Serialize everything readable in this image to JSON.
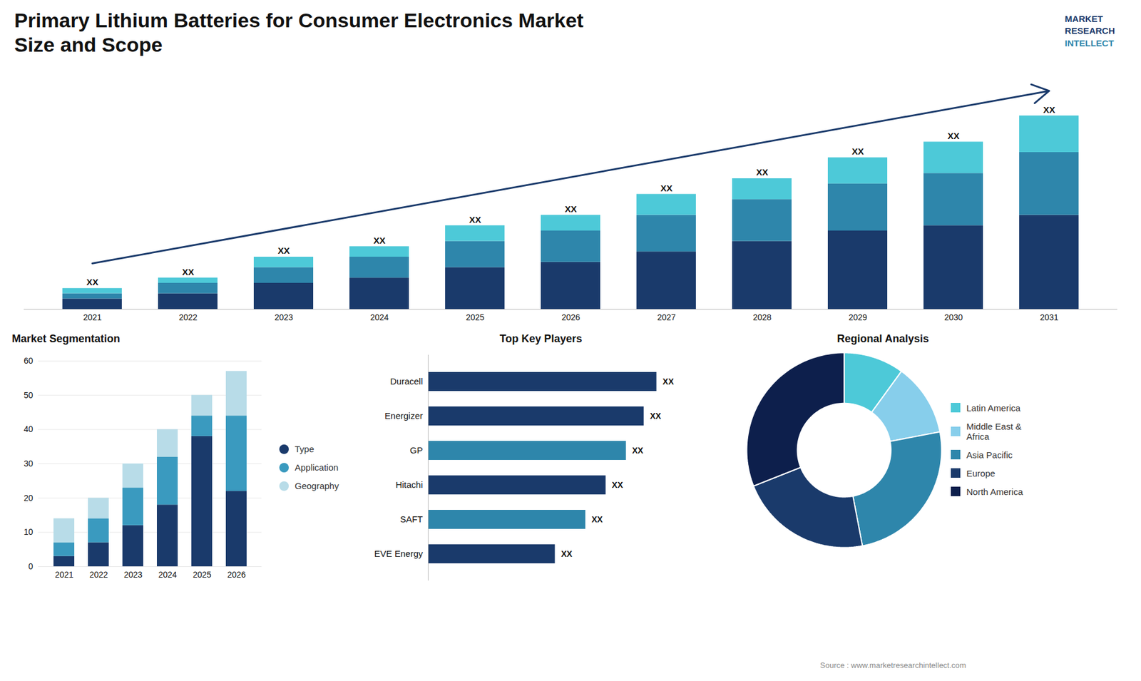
{
  "chart_data": [
    {
      "type": "bar",
      "title": "Primary Lithium Batteries for Consumer Electronics Market",
      "subtitle": "Size and Scope",
      "stacked": true,
      "categories": [
        "2021",
        "2022",
        "2023",
        "2024",
        "2025",
        "2026",
        "2027",
        "2028",
        "2029",
        "2030",
        "2031"
      ],
      "series": [
        {
          "color": "#1a3a6b",
          "values": [
            2,
            3,
            5,
            6,
            8,
            9,
            11,
            13,
            15,
            16,
            18
          ]
        },
        {
          "color": "#2e86ab",
          "values": [
            1,
            2,
            3,
            4,
            5,
            6,
            7,
            8,
            9,
            10,
            12
          ]
        },
        {
          "color": "#4dc9d8",
          "values": [
            1,
            1,
            2,
            2,
            3,
            3,
            4,
            4,
            5,
            6,
            7
          ]
        }
      ],
      "ylim": [
        0,
        45
      ],
      "tick_labels": "x",
      "data_labels": true,
      "value_labels": [
        "XX",
        "XX",
        "XX",
        "XX",
        "XX",
        "XX",
        "XX",
        "XX",
        "XX",
        "XX",
        "XX"
      ],
      "annotations": [
        "MARKET",
        "RESEARCH",
        "INTELLECT",
        "Source : www.marketresearchintellect.com"
      ]
    },
    {
      "type": "bar",
      "title": "Market Segmentation",
      "stacked": true,
      "categories": [
        "2021",
        "2022",
        "2023",
        "2024",
        "2025",
        "2026"
      ],
      "series": [
        {
          "name": "Type",
          "color": "#1a3a6b",
          "values": [
            3,
            7,
            12,
            18,
            38,
            22
          ]
        },
        {
          "name": "Application",
          "color": "#3a9abf",
          "values": [
            4,
            7,
            11,
            14,
            6,
            22
          ]
        },
        {
          "name": "Geography",
          "color": "#b8dce8",
          "values": [
            7,
            6,
            7,
            8,
            6,
            13
          ]
        }
      ],
      "ylim": [
        0,
        60
      ],
      "yticks": [
        0,
        10,
        20,
        30,
        40,
        50,
        60
      ],
      "grid": true,
      "legend": "right"
    },
    {
      "type": "bar",
      "orientation": "horizontal",
      "title": "Top Key Players",
      "categories": [
        "Duracell",
        "Energizer",
        "GP",
        "Hitachi",
        "SAFT",
        "EVE Energy"
      ],
      "values": [
        90,
        85,
        78,
        70,
        62,
        50
      ],
      "colors": [
        "#1a3a6b",
        "#1a3a6b",
        "#2e86ab",
        "#1a3a6b",
        "#2e86ab",
        "#1a3a6b"
      ],
      "xlim": [
        0,
        110
      ],
      "tick_labels": "y",
      "data_labels": true,
      "value_labels": [
        "XX",
        "XX",
        "XX",
        "XX",
        "XX",
        "XX"
      ]
    },
    {
      "type": "pie",
      "title": "Regional Analysis",
      "categories": [
        "Latin America",
        "Middle East &\nAfrica",
        "Asia Pacific",
        "Europe",
        "North America"
      ],
      "values": [
        10,
        12,
        25,
        22,
        31
      ],
      "colors": [
        "#4dc9d8",
        "#87ceeb",
        "#2e86ab",
        "#1a3a6b",
        "#0d1f4c"
      ],
      "legend": "right"
    }
  ]
}
